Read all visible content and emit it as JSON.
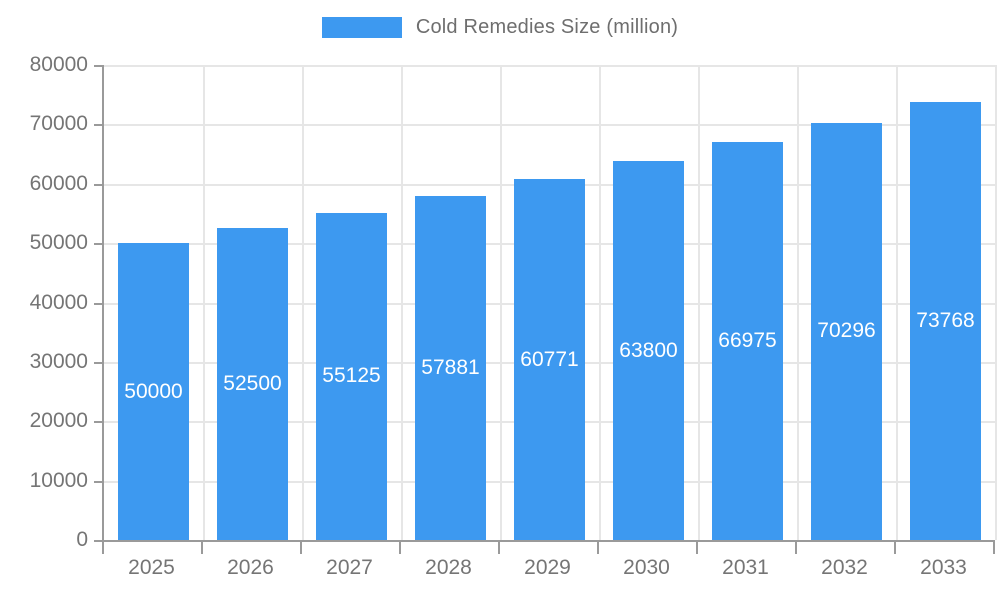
{
  "legend": {
    "label": "Cold Remedies Size (million)",
    "swatch_color": "#3d99f0"
  },
  "chart_data": {
    "type": "bar",
    "title": "Cold Remedies Size (million)",
    "categories": [
      "2025",
      "2026",
      "2027",
      "2028",
      "2029",
      "2030",
      "2031",
      "2032",
      "2033"
    ],
    "values": [
      50000,
      52500,
      55125,
      57881,
      60771,
      63800,
      66975,
      70296,
      73768
    ],
    "xlabel": "",
    "ylabel": "",
    "ylim": [
      0,
      80000
    ],
    "ytick_step": 10000,
    "ytick_labels": [
      "0",
      "10000",
      "20000",
      "30000",
      "40000",
      "50000",
      "60000",
      "70000",
      "80000"
    ],
    "grid": true,
    "legend_position": "top",
    "bar_color": "#3d99f0",
    "bar_label_color": "#ffffff",
    "axis_text_color": "#757575",
    "axis_line_color": "#9a9a9a",
    "gridline_color": "#e6e6e6",
    "bar_width_fraction": 0.72
  }
}
